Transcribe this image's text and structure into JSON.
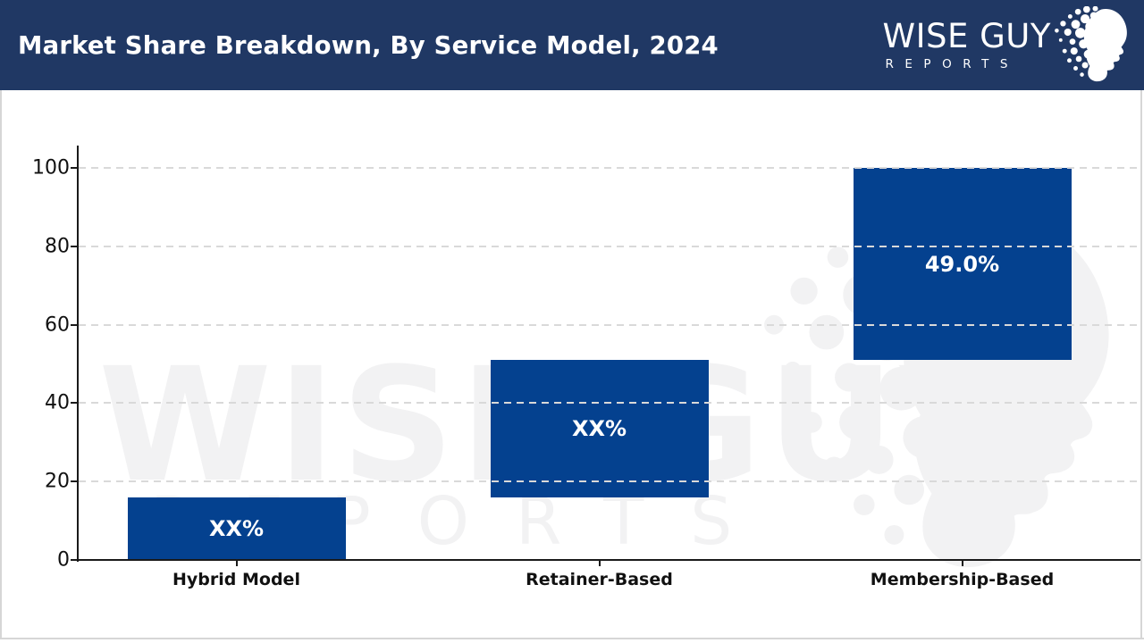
{
  "header": {
    "title": "Market Share Breakdown, By Service Model, 2024",
    "logo": {
      "name": "WISE GUY",
      "sub": "REPORTS"
    }
  },
  "watermark": {
    "line1": "WISE GUY",
    "line2": "REPORTS"
  },
  "colors": {
    "header_bg": "#203864",
    "title_text": "#ffffff",
    "bar": "#04418f",
    "bar_label": "#ffffff",
    "grid": "#d9d9d9",
    "axis": "#1a1a1a",
    "tick_text": "#111111",
    "watermark": "#f2f2f3",
    "frame": "#d6d6d6"
  },
  "chart_data": {
    "type": "bar",
    "subtype": "waterfall",
    "title": "Market Share Breakdown, By Service Model, 2024",
    "categories": [
      "Hybrid Model",
      "Retainer-Based",
      "Membership-Based"
    ],
    "segments": [
      {
        "category": "Hybrid Model",
        "start": 0,
        "end": 16,
        "value_label": "XX%"
      },
      {
        "category": "Retainer-Based",
        "start": 16,
        "end": 51,
        "value_label": "XX%"
      },
      {
        "category": "Membership-Based",
        "start": 51,
        "end": 100,
        "value_label": "49.0%"
      }
    ],
    "y_ticks": [
      0,
      20,
      40,
      60,
      80,
      100
    ],
    "ylim": [
      0,
      105.7
    ],
    "xlabel": "",
    "ylabel": "",
    "grid": "horizontal-dashed",
    "legend": "none"
  }
}
